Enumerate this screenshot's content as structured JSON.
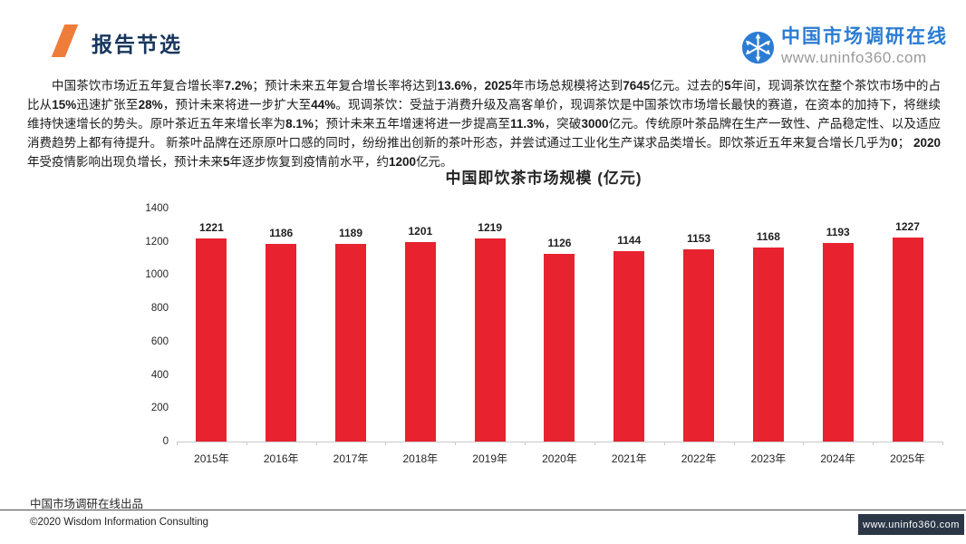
{
  "header": {
    "title": "报告节选",
    "logo": {
      "name": "中国市场调研在线",
      "url": "www.uninfo360.com",
      "icon": "compass-snowflake-icon"
    }
  },
  "paragraph": {
    "segments": [
      {
        "text": "中国茶饮市场近五年复合增长率",
        "bold": false
      },
      {
        "text": "7.2%",
        "bold": true
      },
      {
        "text": "；预计未来五年复合增长率将达到",
        "bold": false
      },
      {
        "text": "13.6%",
        "bold": true
      },
      {
        "text": "，",
        "bold": false
      },
      {
        "text": "2025",
        "bold": true
      },
      {
        "text": "年市场总规模将达到",
        "bold": false
      },
      {
        "text": "7645",
        "bold": true
      },
      {
        "text": "亿元。过去的",
        "bold": false
      },
      {
        "text": "5",
        "bold": true
      },
      {
        "text": "年间，现调茶饮在整个茶饮市场中的占比从",
        "bold": false
      },
      {
        "text": "15%",
        "bold": true
      },
      {
        "text": "迅速扩张至",
        "bold": false
      },
      {
        "text": "28%",
        "bold": true
      },
      {
        "text": "，预计未来将进一步扩大至",
        "bold": false
      },
      {
        "text": "44%",
        "bold": true
      },
      {
        "text": "。现调茶饮：受益于消费升级及高客单价，现调茶饮是中国茶饮市场增长最快的赛道，在资本的加持下，将继续维持快速增长的势头。原叶茶近五年来增长率为",
        "bold": false
      },
      {
        "text": "8.1%",
        "bold": true
      },
      {
        "text": "；预计未来五年增速将进一步提高至",
        "bold": false
      },
      {
        "text": "11.3%",
        "bold": true
      },
      {
        "text": "，突破",
        "bold": false
      },
      {
        "text": "3000",
        "bold": true
      },
      {
        "text": "亿元。传统原叶茶品牌在生产一致性、产品稳定性、以及适应消费趋势上都有待提升。 新茶叶品牌在还原原叶口感的同时，纷纷推出创新的茶叶形态，并尝试通过工业化生产谋求品类增长。即饮茶近五年来复合增长几乎为",
        "bold": false
      },
      {
        "text": "0",
        "bold": true
      },
      {
        "text": "；  ",
        "bold": false
      },
      {
        "text": "2020",
        "bold": true
      },
      {
        "text": "年受疫情影响出现负增长，预计未来",
        "bold": false
      },
      {
        "text": "5",
        "bold": true
      },
      {
        "text": "年逐步恢复到疫情前水平，约",
        "bold": false
      },
      {
        "text": "1200",
        "bold": true
      },
      {
        "text": "亿元。",
        "bold": false
      }
    ]
  },
  "chart_data": {
    "type": "bar",
    "title": "中国即饮茶市场规模 (亿元)",
    "categories": [
      "2015年",
      "2016年",
      "2017年",
      "2018年",
      "2019年",
      "2020年",
      "2021年",
      "2022年",
      "2023年",
      "2024年",
      "2025年"
    ],
    "values": [
      1221,
      1186,
      1189,
      1201,
      1219,
      1126,
      1144,
      1153,
      1168,
      1193,
      1227
    ],
    "xlabel": "",
    "ylabel": "",
    "ylim": [
      0,
      1400
    ],
    "ytick_interval": 200,
    "grid": false,
    "legend": "none",
    "bar_color": "#e8222f",
    "data_labels": true
  },
  "footer": {
    "producer": "中国市场调研在线出品",
    "copyright": "©2020 Wisdom Information Consulting",
    "site": "www.uninfo360.com"
  },
  "colors": {
    "accent_orange": "#ef7d3a",
    "title_navy": "#17365d",
    "logo_blue": "#2b7cd3",
    "bar_red": "#e8222f",
    "footer_badge": "#2b3747",
    "axis_gray": "#c9c9c9"
  }
}
